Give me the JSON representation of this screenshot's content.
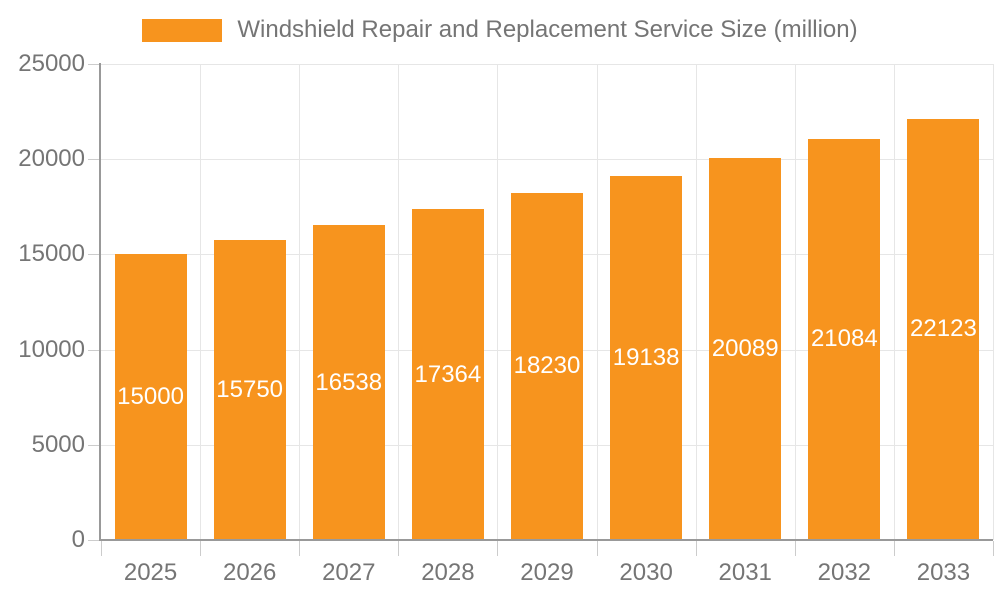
{
  "legend": {
    "label": "Windshield Repair and Replacement Service Size (million)"
  },
  "chart_data": {
    "type": "bar",
    "title": "",
    "xlabel": "",
    "ylabel": "",
    "categories": [
      "2025",
      "2026",
      "2027",
      "2028",
      "2029",
      "2030",
      "2031",
      "2032",
      "2033"
    ],
    "series": [
      {
        "name": "Windshield Repair and Replacement Service Size (million)",
        "values": [
          15000,
          15750,
          16538,
          17364,
          18230,
          19138,
          20089,
          21084,
          22123
        ]
      }
    ],
    "bar_labels": [
      "15000",
      "15750",
      "16538",
      "17364",
      "18230",
      "19138",
      "20089",
      "21084",
      "22123"
    ],
    "ylim": [
      0,
      25000
    ],
    "yticks": [
      0,
      5000,
      10000,
      15000,
      20000,
      25000
    ],
    "ytick_labels": [
      "0",
      "5000",
      "10000",
      "15000",
      "20000",
      "25000"
    ],
    "grid": true,
    "legend_position": "top"
  },
  "colors": {
    "bar": "#f7941e",
    "bar_value_text": "#ffffff",
    "axis_text": "#757575",
    "axis_line": "#999999",
    "tick": "#cccccc",
    "gridline": "#e6e6e6",
    "background": "#ffffff"
  }
}
